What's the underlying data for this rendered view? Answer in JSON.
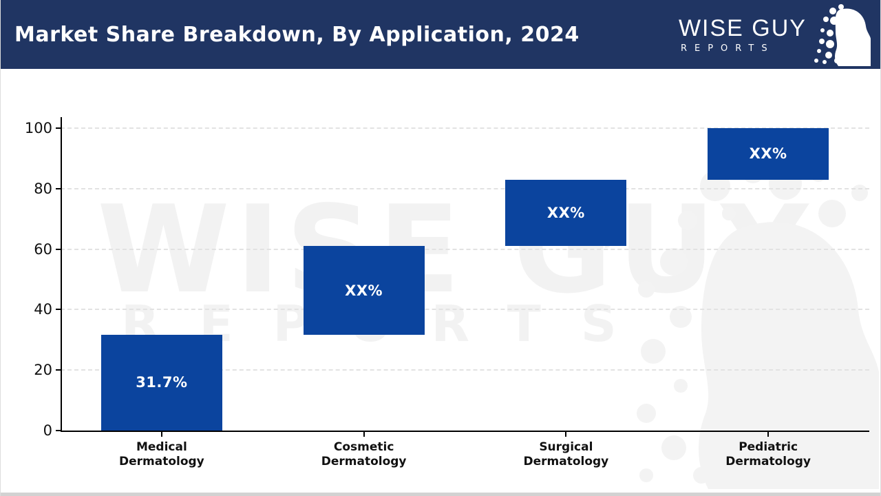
{
  "header": {
    "title": "Market Share Breakdown, By Application, 2024",
    "logo": {
      "line1": "WISE GUY",
      "line2": "REPORTS"
    }
  },
  "watermark": {
    "line1": "WISE GUY",
    "line2": "REPORTS"
  },
  "colors": {
    "header_bg": "#203563",
    "bar": "#0b449e",
    "bar_label": "#ffffff",
    "axis": "#000000",
    "grid": "#e2e2e2",
    "watermark": "#f2f2f2"
  },
  "chart_data": {
    "type": "bar",
    "subtype": "waterfall",
    "title": "Market Share Breakdown, By Application, 2024",
    "xlabel": "",
    "ylabel": "",
    "ylim": [
      0,
      100
    ],
    "yticks": [
      0,
      20,
      40,
      60,
      80,
      100
    ],
    "grid": "horizontal-dashed",
    "legend": "none",
    "categories": [
      {
        "line1": "Medical",
        "line2": "Dermatology"
      },
      {
        "line1": "Cosmetic",
        "line2": "Dermatology"
      },
      {
        "line1": "Surgical",
        "line2": "Dermatology"
      },
      {
        "line1": "Pediatric",
        "line2": "Dermatology"
      }
    ],
    "segments": [
      {
        "category": "Medical Dermatology",
        "start": 0,
        "end": 31.7,
        "label": "31.7%"
      },
      {
        "category": "Cosmetic Dermatology",
        "start": 31.7,
        "end": 61,
        "label": "XX%"
      },
      {
        "category": "Surgical Dermatology",
        "start": 61,
        "end": 83,
        "label": "XX%"
      },
      {
        "category": "Pediatric Dermatology",
        "start": 83,
        "end": 100,
        "label": "XX%"
      }
    ]
  }
}
